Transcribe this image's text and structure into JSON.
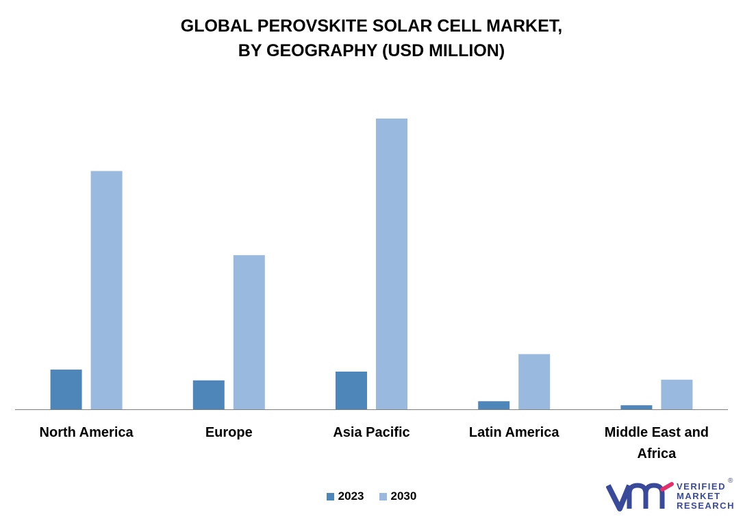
{
  "title_line1": "GLOBAL PEROVSKITE SOLAR CELL MARKET,",
  "title_line2": "BY GEOGRAPHY (USD MILLION)",
  "colors": {
    "s2023": "#4f86ba",
    "s2030": "#99b9de",
    "axis": "#7f7f7f"
  },
  "logo": {
    "line1": "VERIFIED",
    "line2": "MARKET",
    "line3": "RESEARCH",
    "reg": "®",
    "icon": "vmr-logo-icon"
  },
  "chart_data": {
    "type": "bar",
    "title": "GLOBAL PEROVSKITE SOLAR CELL MARKET, BY GEOGRAPHY (USD MILLION)",
    "categories": [
      "North America",
      "Europe",
      "Asia Pacific",
      "Latin America",
      "Middle East and Africa"
    ],
    "category_lines": [
      [
        "North America"
      ],
      [
        "Europe"
      ],
      [
        "Asia Pacific"
      ],
      [
        "Latin America"
      ],
      [
        "Middle East and",
        "Africa"
      ]
    ],
    "series": [
      {
        "name": "2023",
        "values": [
          59,
          43,
          56,
          12,
          6
        ]
      },
      {
        "name": "2030",
        "values": [
          354,
          229,
          432,
          82,
          44
        ]
      }
    ],
    "ylim": [
      0,
      440
    ],
    "grid": false,
    "legend_position": "bottom-center"
  }
}
